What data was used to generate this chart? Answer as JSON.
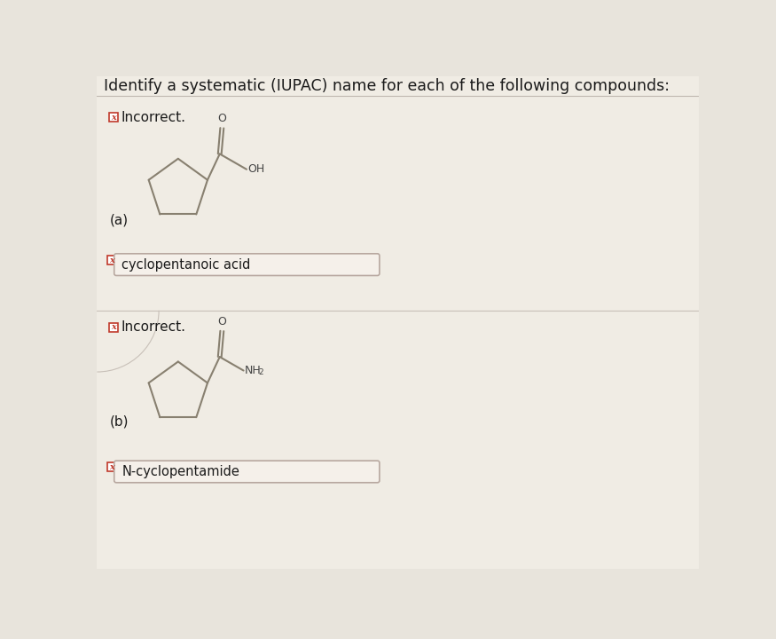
{
  "background_color": "#e8e4dc",
  "panel_color": "#f0ece4",
  "title": "Identify a systematic (IUPAC) name for each of the following compounds:",
  "title_fontsize": 12.5,
  "title_color": "#1a1a1a",
  "section_a_label": "(a)",
  "section_b_label": "(b)",
  "incorrect_text": "Incorrect.",
  "answer_a": "cyclopentanoic acid",
  "answer_b": "N-cyclopentamide",
  "x_icon_color": "#c0392b",
  "x_box_color": "#c0392b",
  "answer_box_border": "#b8a8a0",
  "answer_box_fill": "#f5f0ea",
  "molecule_color": "#888070",
  "o_color": "#444444",
  "oh_color": "#444444",
  "nh2_color": "#444444",
  "sep_line_color": "#c8c0b8",
  "incorrect_x_color": "#c0392b",
  "title_line_color": "#c0b8b0"
}
